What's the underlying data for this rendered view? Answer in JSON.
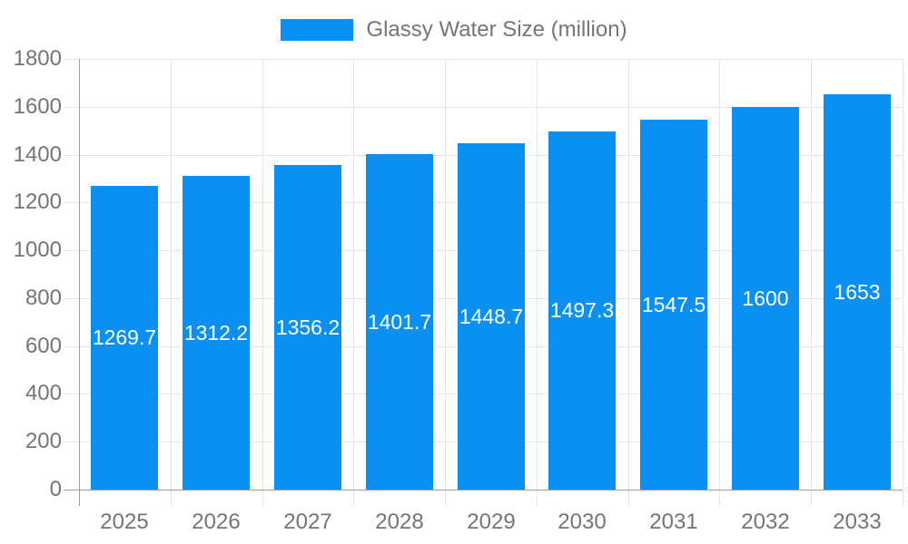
{
  "chart_data": {
    "type": "bar",
    "title": "",
    "legend": "Glassy Water Size (million)",
    "legend_position": "top",
    "categories": [
      "2025",
      "2026",
      "2027",
      "2028",
      "2029",
      "2030",
      "2031",
      "2032",
      "2033"
    ],
    "series": [
      {
        "name": "Glassy Water Size (million)",
        "values": [
          1269.7,
          1312.2,
          1356.2,
          1401.7,
          1448.7,
          1497.3,
          1547.5,
          1600,
          1653
        ]
      }
    ],
    "value_labels": [
      "1269.7",
      "1312.2",
      "1356.2",
      "1401.7",
      "1448.7",
      "1497.3",
      "1547.5",
      "1600",
      "1653"
    ],
    "xlabel": "",
    "ylabel": "",
    "ylim": [
      0,
      1800
    ],
    "ytick_step": 200,
    "grid": true,
    "colors": {
      "bar": "#0990F2",
      "bar_value_label": "#ffffff",
      "axis_text": "#757575",
      "gridline": "#e6e6e6",
      "axis_line": "#9e9e9e",
      "background": "#ffffff"
    }
  }
}
